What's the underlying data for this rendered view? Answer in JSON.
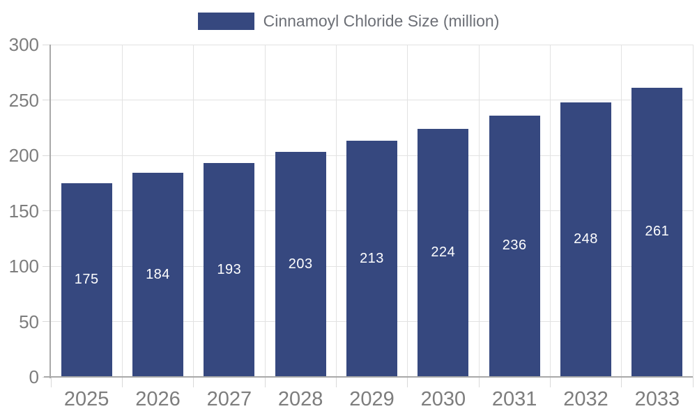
{
  "chart_data": {
    "type": "bar",
    "title": "",
    "legend": "Cinnamoyl Chloride Size (million)",
    "categories": [
      "2025",
      "2026",
      "2027",
      "2028",
      "2029",
      "2030",
      "2031",
      "2032",
      "2033"
    ],
    "values": [
      175,
      184,
      193,
      203,
      213,
      224,
      236,
      248,
      261
    ],
    "xlabel": "",
    "ylabel": "",
    "ylim": [
      0,
      300
    ],
    "yticks": [
      0,
      50,
      100,
      150,
      200,
      250,
      300
    ],
    "grid": true,
    "legend_position": "top-center",
    "value_labels": "inside-center"
  },
  "colors": {
    "bar": "#36487f",
    "bar_label": "#ffffff",
    "grid": "#e2e2e2",
    "tick": "#d9d9d9",
    "axis": "#a8a8a8",
    "tick_text": "#7d7d7d",
    "legend_text": "#6c6f76",
    "background": "#ffffff"
  }
}
